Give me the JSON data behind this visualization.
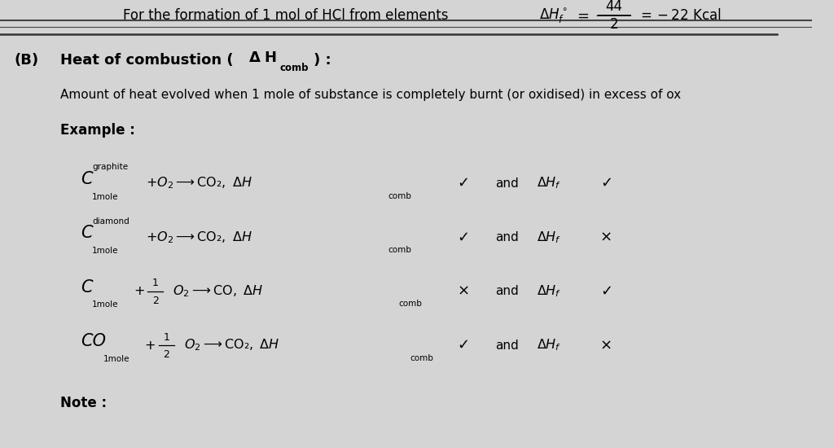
{
  "bg_color": "#d4d4d4",
  "header_prefix": "For the formation of 1 mol of HCl from elements ",
  "frac_num": "44",
  "frac_den": "2",
  "section_B": "(B)",
  "section_title1": "Heat of combustion (",
  "section_title2": ") :",
  "delta_H_comb": "comb",
  "desc_line": "Amount of heat evolved when 1 mole of substance is completely burnt (or oxidised) in excess of ox",
  "example_label": "Example :",
  "note_label": "Note :",
  "rows": [
    {
      "reactant_main": "C",
      "reactant_sup": "graphite",
      "reactant_sub": "1mole",
      "has_half": false,
      "product": "CO₂",
      "check1": "✓",
      "check2": "✓"
    },
    {
      "reactant_main": "C",
      "reactant_sup": "diamond",
      "reactant_sub": "1mole",
      "has_half": false,
      "product": "CO₂",
      "check1": "✓",
      "check2": "×"
    },
    {
      "reactant_main": "C",
      "reactant_sup": "",
      "reactant_sub": "1mole",
      "has_half": true,
      "product": "CO",
      "check1": "×",
      "check2": "✓"
    },
    {
      "reactant_main": "CO",
      "reactant_sup": "",
      "reactant_sub": "1mole",
      "has_half": true,
      "product": "CO₂",
      "check1": "✓",
      "check2": "×"
    }
  ]
}
